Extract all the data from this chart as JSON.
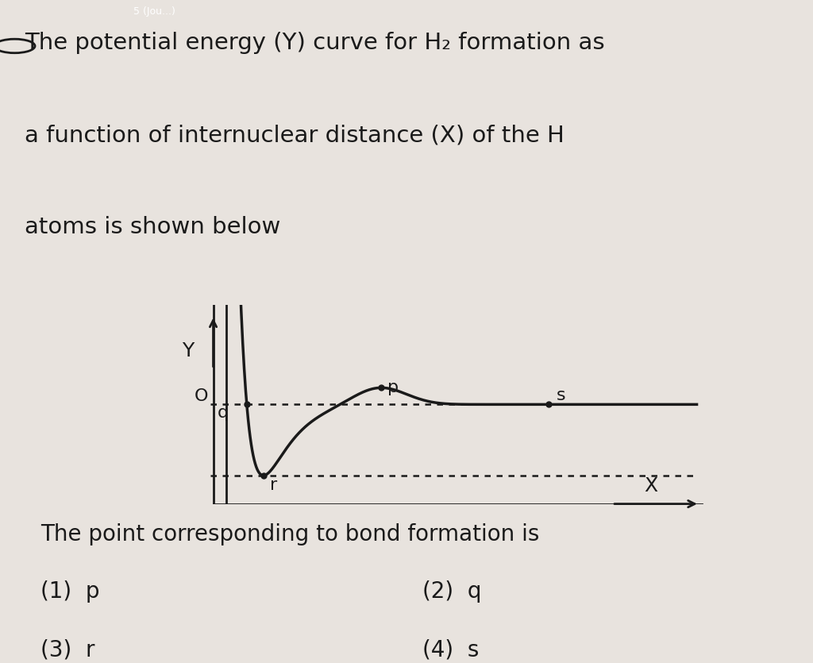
{
  "title_line1": "The potential energy (Y) curve for H₂ formation as",
  "title_line2": "a function of internuclear distance (X) of the H",
  "title_line3": "atoms is shown below",
  "question": "The point corresponding to bond formation is",
  "options": [
    "(1)  p",
    "(2)  q",
    "(3)  r",
    "(4)  s"
  ],
  "bg_color": "#e8e3de",
  "text_color": "#1a1a1a",
  "curve_color": "#1a1a1a",
  "dashed_color": "#1a1a1a",
  "axis_color": "#1a1a1a",
  "label_O": "O",
  "label_q": "q",
  "label_p": "p",
  "label_r": "r",
  "label_s": "s",
  "label_Y": "Y",
  "label_X": "X",
  "top_strip_color": "#1a1a2a",
  "top_strip_text": "5 (Jou...)"
}
